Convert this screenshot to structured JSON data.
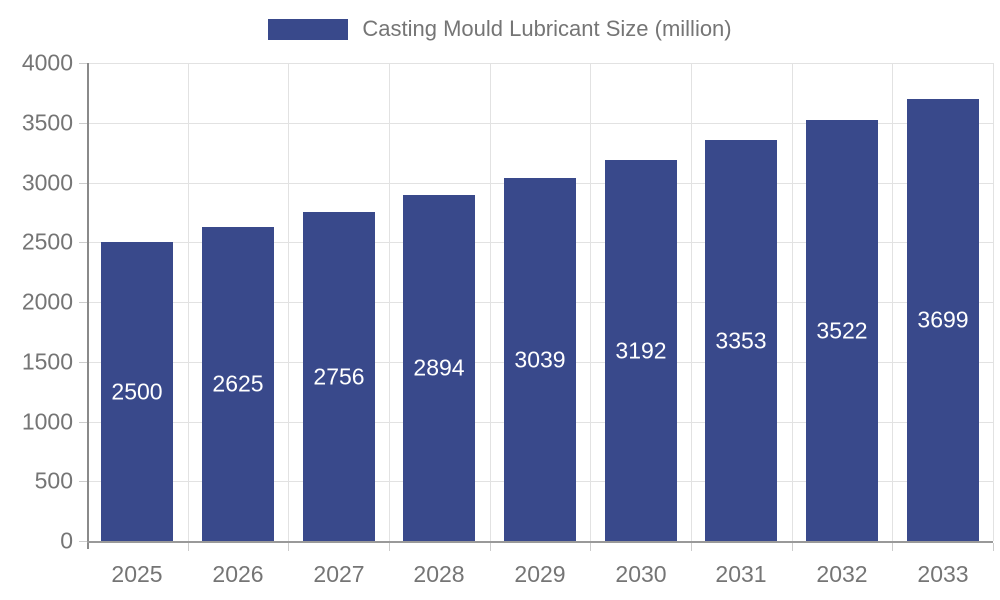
{
  "legend": {
    "label": "Casting Mould Lubricant Size (million)",
    "swatch_color": "#39498B"
  },
  "chart_data": {
    "type": "bar",
    "title": "Casting Mould Lubricant Size (million)",
    "series_name": "Casting Mould Lubricant Size (million)",
    "categories": [
      "2025",
      "2026",
      "2027",
      "2028",
      "2029",
      "2030",
      "2031",
      "2032",
      "2033"
    ],
    "values": [
      2500,
      2625,
      2756,
      2894,
      3039,
      3192,
      3353,
      3522,
      3699
    ],
    "value_labels": [
      "2500",
      "2625",
      "2756",
      "2894",
      "3039",
      "3192",
      "3353",
      "3522",
      "3699"
    ],
    "xlabel": "",
    "ylabel": "",
    "ylim": [
      0,
      4000
    ],
    "y_ticks": [
      0,
      500,
      1000,
      1500,
      2000,
      2500,
      3000,
      3500,
      4000
    ],
    "y_tick_labels": [
      "0",
      "500",
      "1000",
      "1500",
      "2000",
      "2500",
      "3000",
      "3500",
      "4000"
    ],
    "grid": true,
    "legend_position": "top",
    "colors": {
      "bar": "#39498B",
      "value_label": "#ffffff",
      "axis_text": "#757575",
      "grid_line": "#e2e2e2",
      "axis_line": "#999999",
      "tick_mark": "#cccccc"
    }
  }
}
